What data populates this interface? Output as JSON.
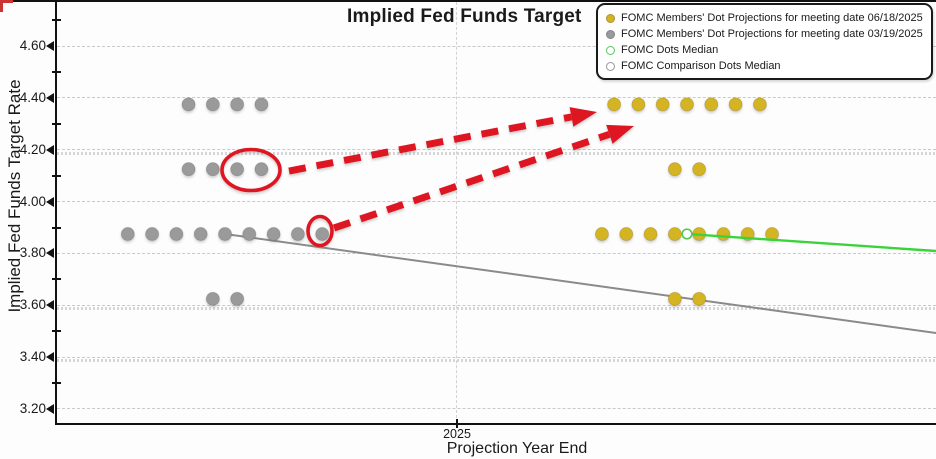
{
  "title": "Implied Fed Funds Target",
  "axes": {
    "y_label": "Implied Fed Funds Target Rate",
    "y_ticks": [
      "4.60",
      "4.40",
      "4.20",
      "4.00",
      "3.80",
      "3.60",
      "3.40",
      "3.20"
    ],
    "x_tick": "2025",
    "x_label": "Projection Year End"
  },
  "legend": {
    "position": "top-right",
    "items": [
      {
        "label": "FOMC Members' Dot Projections for meeting date 06/18/2025",
        "marker": "filled-circle",
        "color": "#d4b420"
      },
      {
        "label": "FOMC Members' Dot Projections for meeting date 03/19/2025",
        "marker": "filled-circle",
        "color": "#9a9a9a"
      },
      {
        "label": "FOMC Dots Median",
        "marker": "open-circle",
        "color": "#57c857"
      },
      {
        "label": "FOMC Comparison Dots Median",
        "marker": "open-circle",
        "color": "#979797"
      }
    ]
  },
  "chart_data": {
    "type": "scatter",
    "title": "Implied Fed Funds Target",
    "xlabel": "Projection Year End",
    "ylabel": "Implied Fed Funds Target Rate",
    "x_categories": [
      "2025"
    ],
    "ylim": [
      3.1,
      4.72
    ],
    "y_ticks": [
      4.6,
      4.4,
      4.2,
      4.0,
      3.8,
      3.6,
      3.4,
      3.2
    ],
    "grid": "dashed-horizontal-and-vertical",
    "legend_position": "top-right",
    "series": [
      {
        "name": "FOMC Members' Dot Projections for meeting date 06/18/2025",
        "color": "#d4b420",
        "cluster_x": 687,
        "rows": [
          {
            "rate": 4.375,
            "count": 7
          },
          {
            "rate": 4.125,
            "count": 2
          },
          {
            "rate": 3.875,
            "count": 8
          },
          {
            "rate": 3.625,
            "count": 2
          }
        ]
      },
      {
        "name": "FOMC Members' Dot Projections for meeting date 03/19/2025",
        "color": "#9a9a9a",
        "cluster_x": 225,
        "rows": [
          {
            "rate": 4.375,
            "count": 4
          },
          {
            "rate": 4.125,
            "count": 4
          },
          {
            "rate": 3.875,
            "count": 9
          },
          {
            "rate": 3.625,
            "count": 2
          }
        ]
      }
    ],
    "medians": [
      {
        "name": "FOMC Dots Median",
        "value": 3.875,
        "color": "#3bd33b",
        "marker": "open-green-circle"
      },
      {
        "name": "FOMC Comparison Dots Median",
        "value": 3.875,
        "color": "#8a8a8a",
        "marker": "none-visible"
      }
    ],
    "annotations": {
      "color": "#de1423",
      "ellipses": [
        {
          "highlights": "two 03/19/2025 dots at 4.125"
        },
        {
          "highlights": "one 03/19/2025 dot at 3.875"
        }
      ],
      "arrows": [
        {
          "from": "circled 4.125 dots (03/19/2025)",
          "to": "4.375 dot row (06/18/2025)"
        },
        {
          "from": "circled 3.875 dot (03/19/2025)",
          "to": "4.375 dot row (06/18/2025)"
        }
      ]
    }
  }
}
